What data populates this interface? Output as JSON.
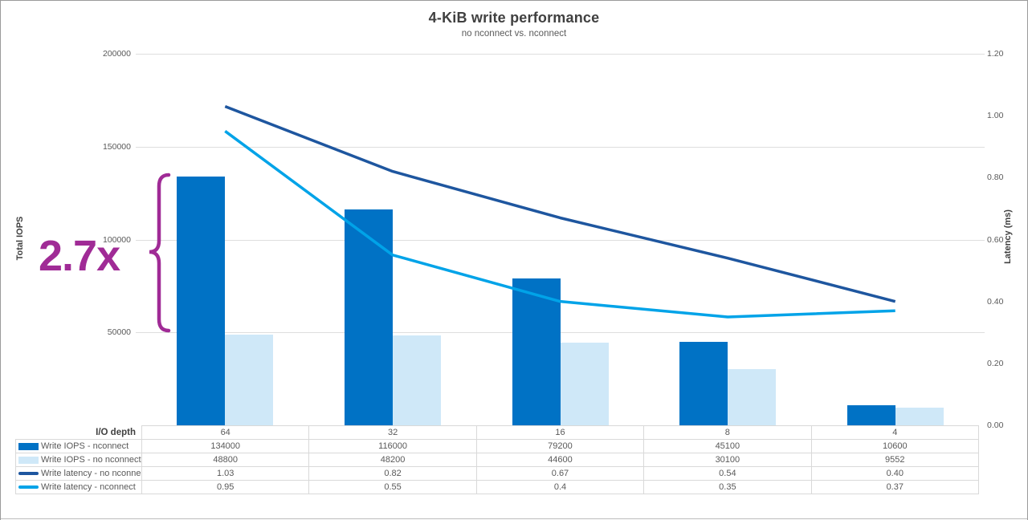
{
  "header": {
    "title": "4-KiB write performance",
    "subtitle": "no nconnect vs. nconnect"
  },
  "annotation": {
    "label": "2.7x",
    "color": "#a02b96"
  },
  "chart_data": {
    "type": "combo-bar-line",
    "title": "4-KiB write performance",
    "subtitle": "no nconnect vs. nconnect",
    "x_axis": {
      "title": "I/O depth",
      "categories": [
        "64",
        "32",
        "16",
        "8",
        "4"
      ]
    },
    "left_axis": {
      "title": "Total IOPS",
      "max": 200000,
      "min": 0,
      "ticks": [
        {
          "label": "200000",
          "value": 200000
        },
        {
          "label": "150000",
          "value": 150000
        },
        {
          "label": "100000",
          "value": 100000
        },
        {
          "label": "50000",
          "value": 50000
        }
      ],
      "grid": true
    },
    "right_axis": {
      "title": "Latency (ms)",
      "max": 1.2,
      "min": 0,
      "ticks": [
        {
          "label": "1.20",
          "value": 1.2
        },
        {
          "label": "1.00",
          "value": 1.0
        },
        {
          "label": "0.80",
          "value": 0.8
        },
        {
          "label": "0.60",
          "value": 0.6
        },
        {
          "label": "0.40",
          "value": 0.4
        },
        {
          "label": "0.20",
          "value": 0.2
        },
        {
          "label": "0.00",
          "value": 0.0
        }
      ],
      "grid": false
    },
    "legend_position": "table-left",
    "series": [
      {
        "name": "Write IOPS - nconnect",
        "type": "bar",
        "axis": "left",
        "color": "#0072c5",
        "values": [
          134000,
          116000,
          79200,
          45100,
          10600
        ],
        "display": [
          "134000",
          "116000",
          "79200",
          "45100",
          "10600"
        ]
      },
      {
        "name": "Write IOPS - no nconnect",
        "type": "bar",
        "axis": "left",
        "color": "#cfe8f8",
        "values": [
          48800,
          48200,
          44600,
          30100,
          9552
        ],
        "display": [
          "48800",
          "48200",
          "44600",
          "30100",
          "9552"
        ]
      },
      {
        "name": "Write latency - no nconnect",
        "type": "line",
        "axis": "right",
        "color": "#1e569f",
        "values": [
          1.03,
          0.82,
          0.67,
          0.54,
          0.4
        ],
        "display": [
          "1.03",
          "0.82",
          "0.67",
          "0.54",
          "0.40"
        ]
      },
      {
        "name": "Write latency - nconnect",
        "type": "line",
        "axis": "right",
        "color": "#00a3e8",
        "values": [
          0.95,
          0.55,
          0.4,
          0.35,
          0.37
        ],
        "display": [
          "0.95",
          "0.55",
          "0.4",
          "0.35",
          "0.37"
        ]
      }
    ]
  }
}
